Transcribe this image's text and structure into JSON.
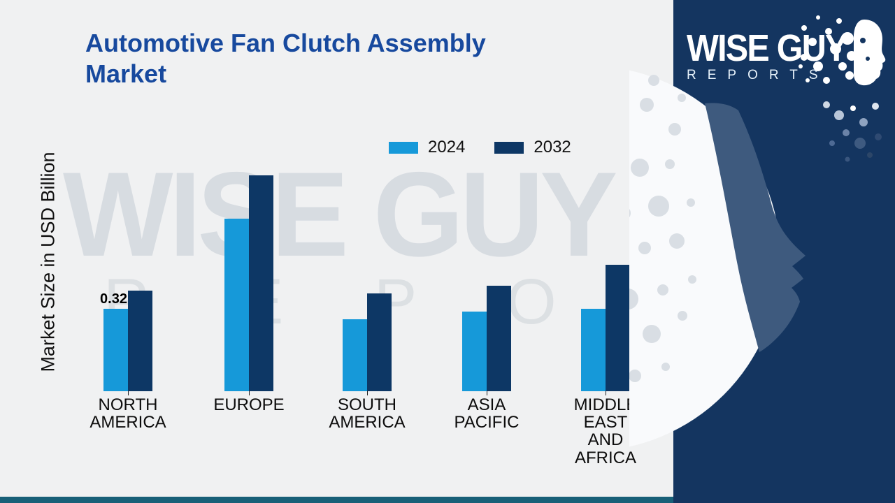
{
  "header": {
    "title": "Automotive Fan Clutch Assembly Market",
    "title_display": "Automotive Fan Clutch Assembly\nMarket"
  },
  "brand": {
    "logo_line1": "WISE GUY",
    "logo_line2": "REPORTS",
    "watermark_line1": "WISE GUY",
    "watermark_line2": "R E P O R T S"
  },
  "colors": {
    "title_blue": "#17499e",
    "bar_2024_blue": "#1699d9",
    "bar_2032_navy": "#0d3765",
    "panel_navy": "#143560",
    "face_slate": "#3e5a7e",
    "teal_strip": "#186078",
    "background": "#f0f1f2"
  },
  "chart_data": {
    "type": "bar",
    "title": "Automotive Fan Clutch Assembly Market",
    "xlabel": "",
    "ylabel": "Market Size in USD Billion",
    "ylim": [
      0,
      0.95
    ],
    "grid": false,
    "legend_position": "top-center",
    "categories": [
      "NORTH AMERICA",
      "EUROPE",
      "SOUTH AMERICA",
      "ASIA PACIFIC",
      "MIDDLE EAST AND AFRICA"
    ],
    "tick_labels": [
      "NORTH\nAMERICA",
      "EUROPE",
      "SOUTH\nAMERICA",
      "ASIA\nPACIFIC",
      "MIDDLE\nEAST\nAND\nAFRICA"
    ],
    "series": [
      {
        "name": "2024",
        "color": "#1699d9",
        "values": [
          0.32,
          0.67,
          0.28,
          0.31,
          0.32
        ]
      },
      {
        "name": "2032",
        "color": "#0d3765",
        "values": [
          0.39,
          0.84,
          0.38,
          0.41,
          0.49
        ]
      }
    ],
    "annotations": [
      {
        "series": "2024",
        "category": "NORTH AMERICA",
        "text": "0.32"
      }
    ]
  }
}
